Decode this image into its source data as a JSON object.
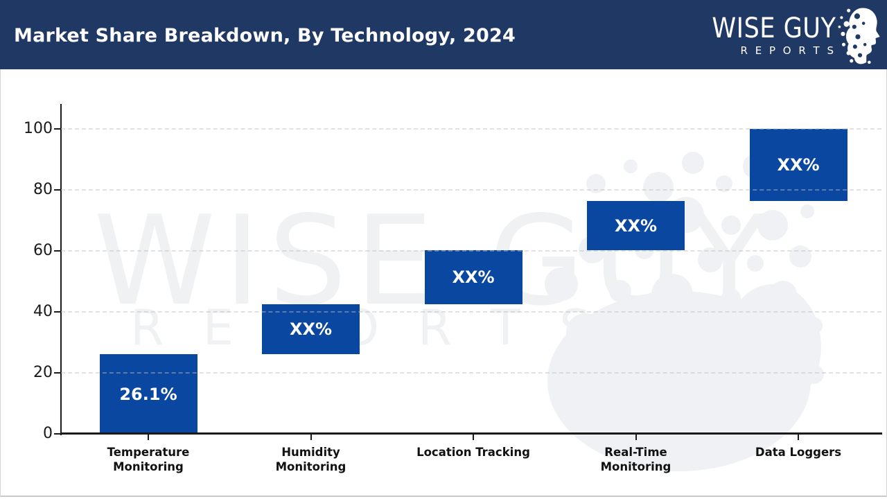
{
  "header": {
    "title": "Market Share Breakdown, By Technology, 2024",
    "bg_color": "#1f3864",
    "logo": {
      "name": "WISE GUY",
      "subname": "R E P O R T S"
    }
  },
  "watermark": {
    "line1": "WISE GUY",
    "line2": "R E P O R T S"
  },
  "chart_data": {
    "type": "bar",
    "subtype": "waterfall",
    "title": "Market Share Breakdown, By Technology, 2024",
    "categories": [
      "Temperature\nMonitoring",
      "Humidity\nMonitoring",
      "Location Tracking",
      "Real-Time\nMonitoring",
      "Data Loggers"
    ],
    "segments": [
      {
        "category": "Temperature Monitoring",
        "start": 0,
        "end": 26.1,
        "label": "26.1%"
      },
      {
        "category": "Humidity Monitoring",
        "start": 26.1,
        "end": 42.4,
        "label": "XX%"
      },
      {
        "category": "Location Tracking",
        "start": 42.4,
        "end": 60.2,
        "label": "XX%"
      },
      {
        "category": "Real-Time Monitoring",
        "start": 60.2,
        "end": 76.3,
        "label": "XX%"
      },
      {
        "category": "Data Loggers",
        "start": 76.3,
        "end": 100,
        "label": "XX%"
      }
    ],
    "xlabel": "",
    "ylabel": "",
    "ylim": [
      0,
      108
    ],
    "yticks": [
      0,
      20,
      40,
      60,
      80,
      100
    ],
    "grid": true,
    "grid_style": "dashed",
    "legend": false,
    "bar_color": "#0a47a0",
    "bar_label_color": "#ffffff",
    "axis_color": "#1a1a1a",
    "tick_label_color": "#1a1a1a"
  }
}
